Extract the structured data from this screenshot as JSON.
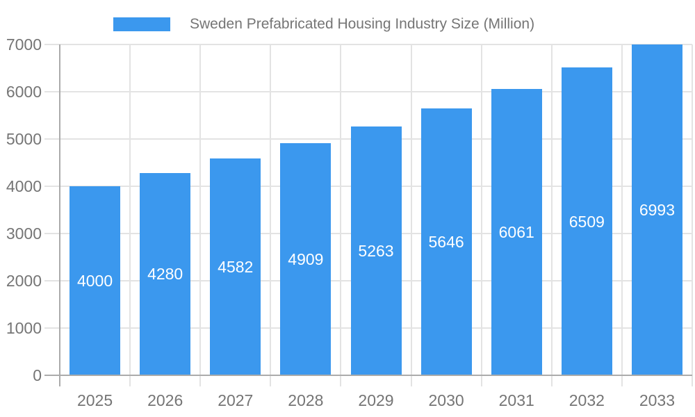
{
  "legend": {
    "label": "Sweden Prefabricated Housing Industry Size (Million)"
  },
  "chart_data": {
    "type": "bar",
    "title": "Sweden Prefabricated Housing Industry Size (Million)",
    "categories": [
      "2025",
      "2026",
      "2027",
      "2028",
      "2029",
      "2030",
      "2031",
      "2032",
      "2033"
    ],
    "values": [
      4000,
      4280,
      4582,
      4909,
      5263,
      5646,
      6061,
      6509,
      6993
    ],
    "xlabel": "",
    "ylabel": "",
    "ylim": [
      0,
      7000
    ],
    "yticks": [
      0,
      1000,
      2000,
      3000,
      4000,
      5000,
      6000,
      7000
    ],
    "grid": true,
    "legend_position": "top",
    "bar_color": "#3B98EE",
    "gridline_color": "#E3E3E3",
    "axis_line_color": "#ABABAB",
    "axis_label_color": "#757575",
    "value_label_color": "#FFFFFF"
  }
}
